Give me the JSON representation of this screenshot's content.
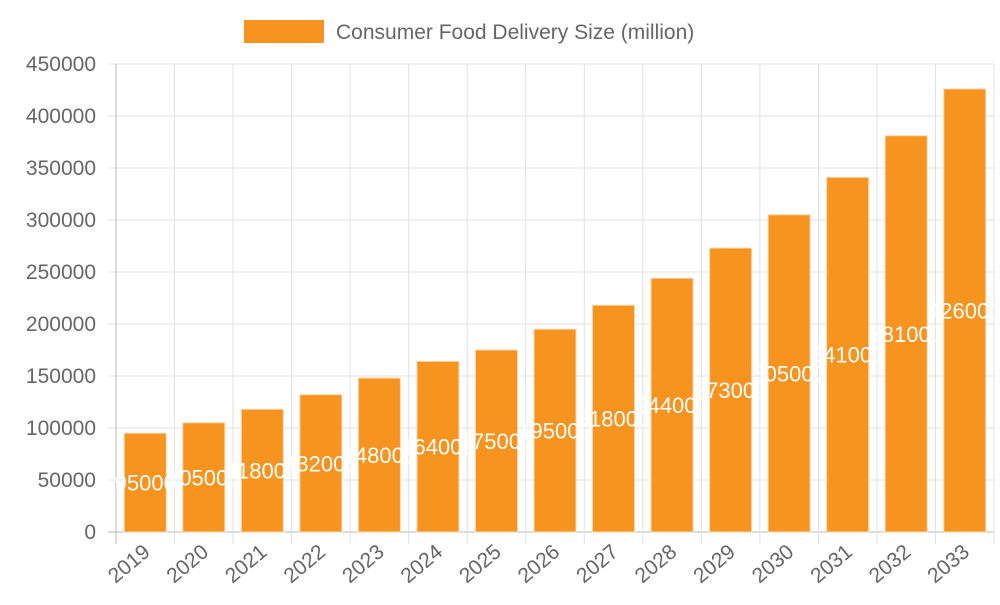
{
  "chart_data": {
    "type": "bar",
    "title": "",
    "xlabel": "",
    "ylabel": "",
    "categories": [
      "2019",
      "2020",
      "2021",
      "2022",
      "2023",
      "2024",
      "2025",
      "2026",
      "2027",
      "2028",
      "2029",
      "2030",
      "2031",
      "2032",
      "2033"
    ],
    "series": [
      {
        "name": "Consumer Food Delivery Size (million)",
        "values": [
          95000,
          105000,
          118000,
          132000,
          148000,
          164000,
          175000,
          195000,
          218000,
          244000,
          273000,
          305000,
          341000,
          381000,
          426000
        ]
      }
    ],
    "ylim": [
      0,
      450000
    ],
    "yticks": [
      0,
      50000,
      100000,
      150000,
      200000,
      250000,
      300000,
      350000,
      400000,
      450000
    ],
    "grid": true,
    "legend": "top",
    "data_labels": true,
    "colors": {
      "bar": "#f79420",
      "label": "#ffffff",
      "grid": "#e0e0e0",
      "tick_text": "#666666"
    }
  }
}
